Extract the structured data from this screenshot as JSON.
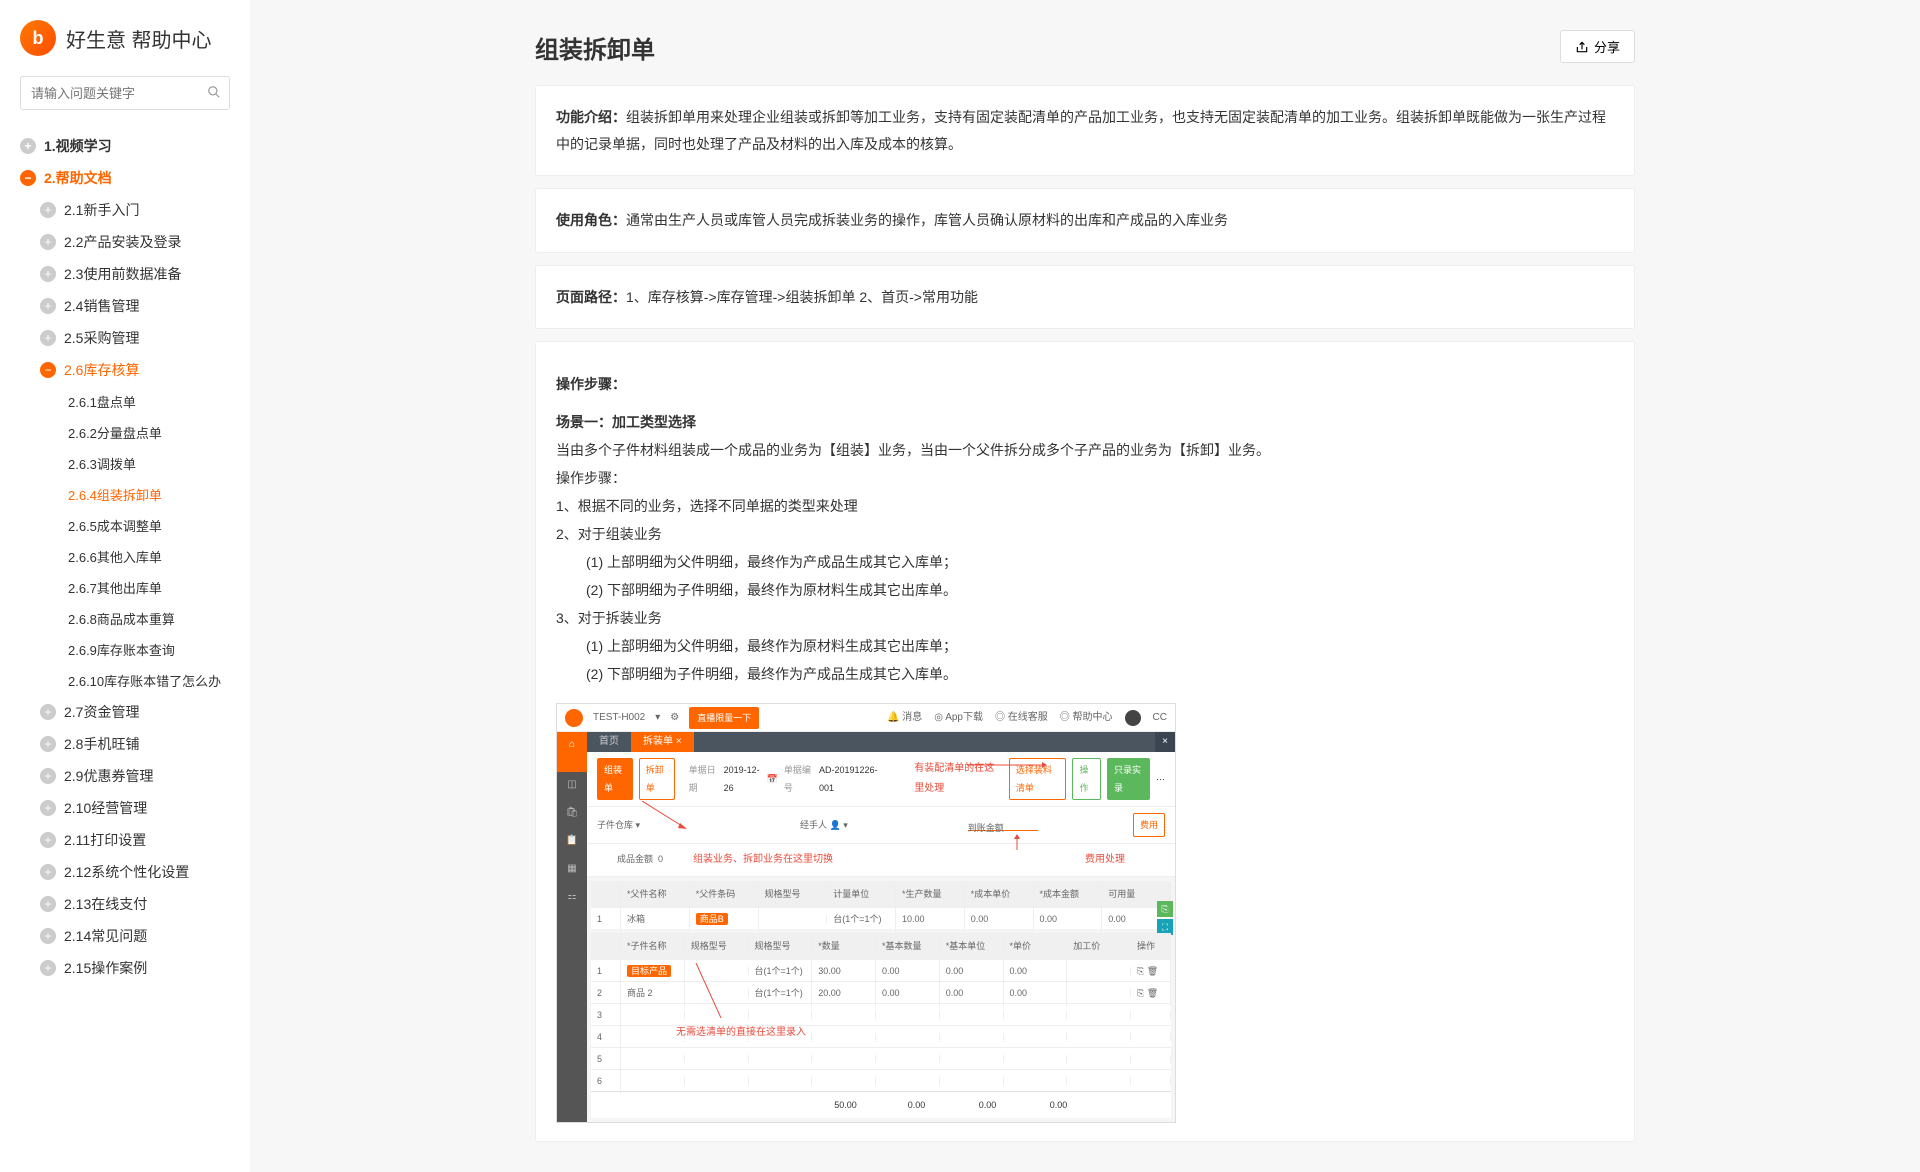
{
  "brand": {
    "logo_char": "b",
    "title": "好生意 帮助中心"
  },
  "search": {
    "placeholder": "请输入问题关键字"
  },
  "nav": {
    "items": [
      {
        "label": "1.视频学习",
        "icon": "plus",
        "bold": true
      },
      {
        "label": "2.帮助文档",
        "icon": "minus",
        "bold": true,
        "active": true
      },
      {
        "label": "2.1新手入门",
        "icon": "plus",
        "indent": 1
      },
      {
        "label": "2.2产品安装及登录",
        "icon": "plus",
        "indent": 1
      },
      {
        "label": "2.3使用前数据准备",
        "icon": "plus",
        "indent": 1
      },
      {
        "label": "2.4销售管理",
        "icon": "plus",
        "indent": 1
      },
      {
        "label": "2.5采购管理",
        "icon": "plus",
        "indent": 1
      },
      {
        "label": "2.6库存核算",
        "icon": "minus",
        "indent": 1,
        "active": true
      },
      {
        "label": "2.6.1盘点单",
        "indent": 2
      },
      {
        "label": "2.6.2分量盘点单",
        "indent": 2
      },
      {
        "label": "2.6.3调拨单",
        "indent": 2
      },
      {
        "label": "2.6.4组装拆卸单",
        "indent": 2,
        "active": true
      },
      {
        "label": "2.6.5成本调整单",
        "indent": 2
      },
      {
        "label": "2.6.6其他入库单",
        "indent": 2
      },
      {
        "label": "2.6.7其他出库单",
        "indent": 2
      },
      {
        "label": "2.6.8商品成本重算",
        "indent": 2
      },
      {
        "label": "2.6.9库存账本查询",
        "indent": 2
      },
      {
        "label": "2.6.10库存账本错了怎么办",
        "indent": 2
      },
      {
        "label": "2.7资金管理",
        "icon": "plus",
        "indent": 1
      },
      {
        "label": "2.8手机旺铺",
        "icon": "plus",
        "indent": 1
      },
      {
        "label": "2.9优惠券管理",
        "icon": "plus",
        "indent": 1
      },
      {
        "label": "2.10经营管理",
        "icon": "plus",
        "indent": 1
      },
      {
        "label": "2.11打印设置",
        "icon": "plus",
        "indent": 1
      },
      {
        "label": "2.12系统个性化设置",
        "icon": "plus",
        "indent": 1
      },
      {
        "label": "2.13在线支付",
        "icon": "plus",
        "indent": 1
      },
      {
        "label": "2.14常见问题",
        "icon": "plus",
        "indent": 1
      },
      {
        "label": "2.15操作案例",
        "icon": "plus",
        "indent": 1
      }
    ]
  },
  "page": {
    "title": "组装拆卸单",
    "share_label": "分享"
  },
  "cards": {
    "intro_label": "功能介绍：",
    "intro_text": "组装拆卸单用来处理企业组装或拆卸等加工业务，支持有固定装配清单的产品加工业务，也支持无固定装配清单的加工业务。组装拆卸单既能做为一张生产过程中的记录单据，同时也处理了产品及材料的出入库及成本的核算。",
    "role_label": "使用角色：",
    "role_text": "通常由生产人员或库管人员完成拆装业务的操作，库管人员确认原材料的出库和产成品的入库业务",
    "path_label": "页面路径：",
    "path_text": "1、库存核算->库存管理->组装拆卸单  2、首页->常用功能"
  },
  "content": {
    "steps_title": "操作步骤：",
    "scene_title": "场景一：加工类型选择",
    "scene_desc": "当由多个子件材料组装成一个成品的业务为【组装】业务，当由一个父件拆分成多个子产品的业务为【拆卸】业务。",
    "steps_label": "操作步骤：",
    "step1": "1、根据不同的业务，选择不同单据的类型来处理",
    "step2": "2、对于组装业务",
    "step2_1": "(1) 上部明细为父件明细，最终作为产成品生成其它入库单；",
    "step2_2": "(2) 下部明细为子件明细，最终作为原材料生成其它出库单。",
    "step3": "3、对于拆装业务",
    "step3_1": "(1) 上部明细为父件明细，最终作为原材料生成其它出库单；",
    "step3_2": "(2) 下部明细为子件明细，最终作为产成品生成其它入库单。"
  },
  "screenshot": {
    "top": {
      "code": "TEST-H002",
      "btn": "直播限量一下",
      "r1": "消息",
      "r2": "App下载",
      "r3": "在线客服",
      "r4": "帮助中心",
      "user": "CC"
    },
    "tabs": {
      "home": "首页",
      "active": "拆装单 ×"
    },
    "toolbar": {
      "btn_assemble": "组装单",
      "btn_disassemble": "拆卸单",
      "date_label": "单据日期",
      "date_value": "2019-12-26",
      "doc_label": "单据编号",
      "doc_value": "AD-20191226-001",
      "note1": "有装配清单的在这里处理",
      "btn_select": "选择装料清单",
      "btn_op": "操作",
      "btn_expand": "只录实录",
      "note2": "组装业务、拆卸业务在这里切换"
    },
    "row2": {
      "l1": "子件仓库",
      "l2": "经手人",
      "l3": "到账金额",
      "btn": "费用"
    },
    "row3": {
      "label": "成品金额",
      "val": "0",
      "note": "费用处理"
    },
    "table1": {
      "headers": [
        "",
        "*父件名称",
        "*父件条码",
        "规格型号",
        "计量单位",
        "*生产数量",
        "*成本单价",
        "*成本金额",
        "可用量"
      ],
      "row": [
        "1",
        "冰箱",
        "商品B",
        "",
        "台(1个=1个)",
        "10.00",
        "0.00",
        "0.00",
        "0.00"
      ],
      "highlight_text": "商品B"
    },
    "table2": {
      "headers": [
        "",
        "*子件名称",
        "规格型号",
        "规格型号",
        "*数量",
        "*基本数量",
        "*基本单位",
        "*单价",
        "加工价"
      ],
      "rows": [
        [
          "1",
          "商品 1",
          "",
          "台(1个=1个)",
          "30.00",
          "0.00",
          "0.00",
          "0.00",
          ""
        ],
        [
          "2",
          "商品 2",
          "",
          "台(1个=1个)",
          "20.00",
          "0.00",
          "0.00",
          "0.00",
          ""
        ],
        [
          "3",
          "",
          "",
          "",
          "",
          "",
          "",
          "",
          ""
        ],
        [
          "4",
          "",
          "",
          "",
          "",
          "",
          "",
          "",
          ""
        ],
        [
          "5",
          "",
          "",
          "",
          "",
          "",
          "",
          "",
          ""
        ],
        [
          "6",
          "",
          "",
          "",
          "",
          "",
          "",
          "",
          ""
        ]
      ],
      "highlight_text": "目标产品",
      "note": "无需选清单的直接在这里录入",
      "action_label": "操作"
    },
    "footer": {
      "total": "50.00",
      "v1": "0.00",
      "v2": "0.00",
      "v3": "0.00"
    }
  }
}
